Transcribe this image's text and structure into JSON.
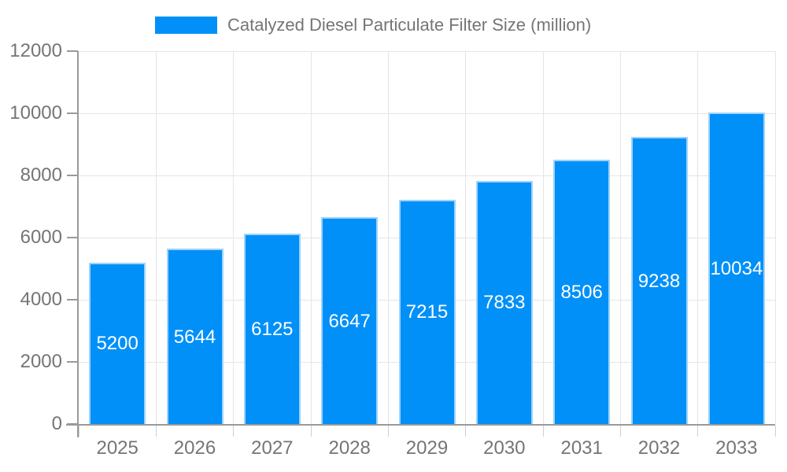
{
  "chart_data": {
    "type": "bar",
    "title": "Catalyzed Diesel Particulate Filter Size (million)",
    "legend_label": "Catalyzed Diesel Particulate Filter Size (million)",
    "legend_position": "top",
    "categories": [
      "2025",
      "2026",
      "2027",
      "2028",
      "2029",
      "2030",
      "2031",
      "2032",
      "2033"
    ],
    "values": [
      5200,
      5644,
      6125,
      6647,
      7215,
      7833,
      8506,
      9238,
      10034
    ],
    "xlabel": "",
    "ylabel": "",
    "ylim": [
      0,
      12000
    ],
    "yticks": [
      0,
      2000,
      4000,
      6000,
      8000,
      10000,
      12000
    ],
    "grid": "on",
    "value_labels": "inside-center-white",
    "colors": {
      "bar_fill": "#0090F8",
      "bar_border": "#9ED3FA",
      "value_label": "#FFFFFF",
      "axis_text": "#757575",
      "axis_line": "#9A9A9A",
      "gridline": "#E5E5E5",
      "minor_tick": "#CFCFCF",
      "background": "#FFFFFF"
    }
  }
}
